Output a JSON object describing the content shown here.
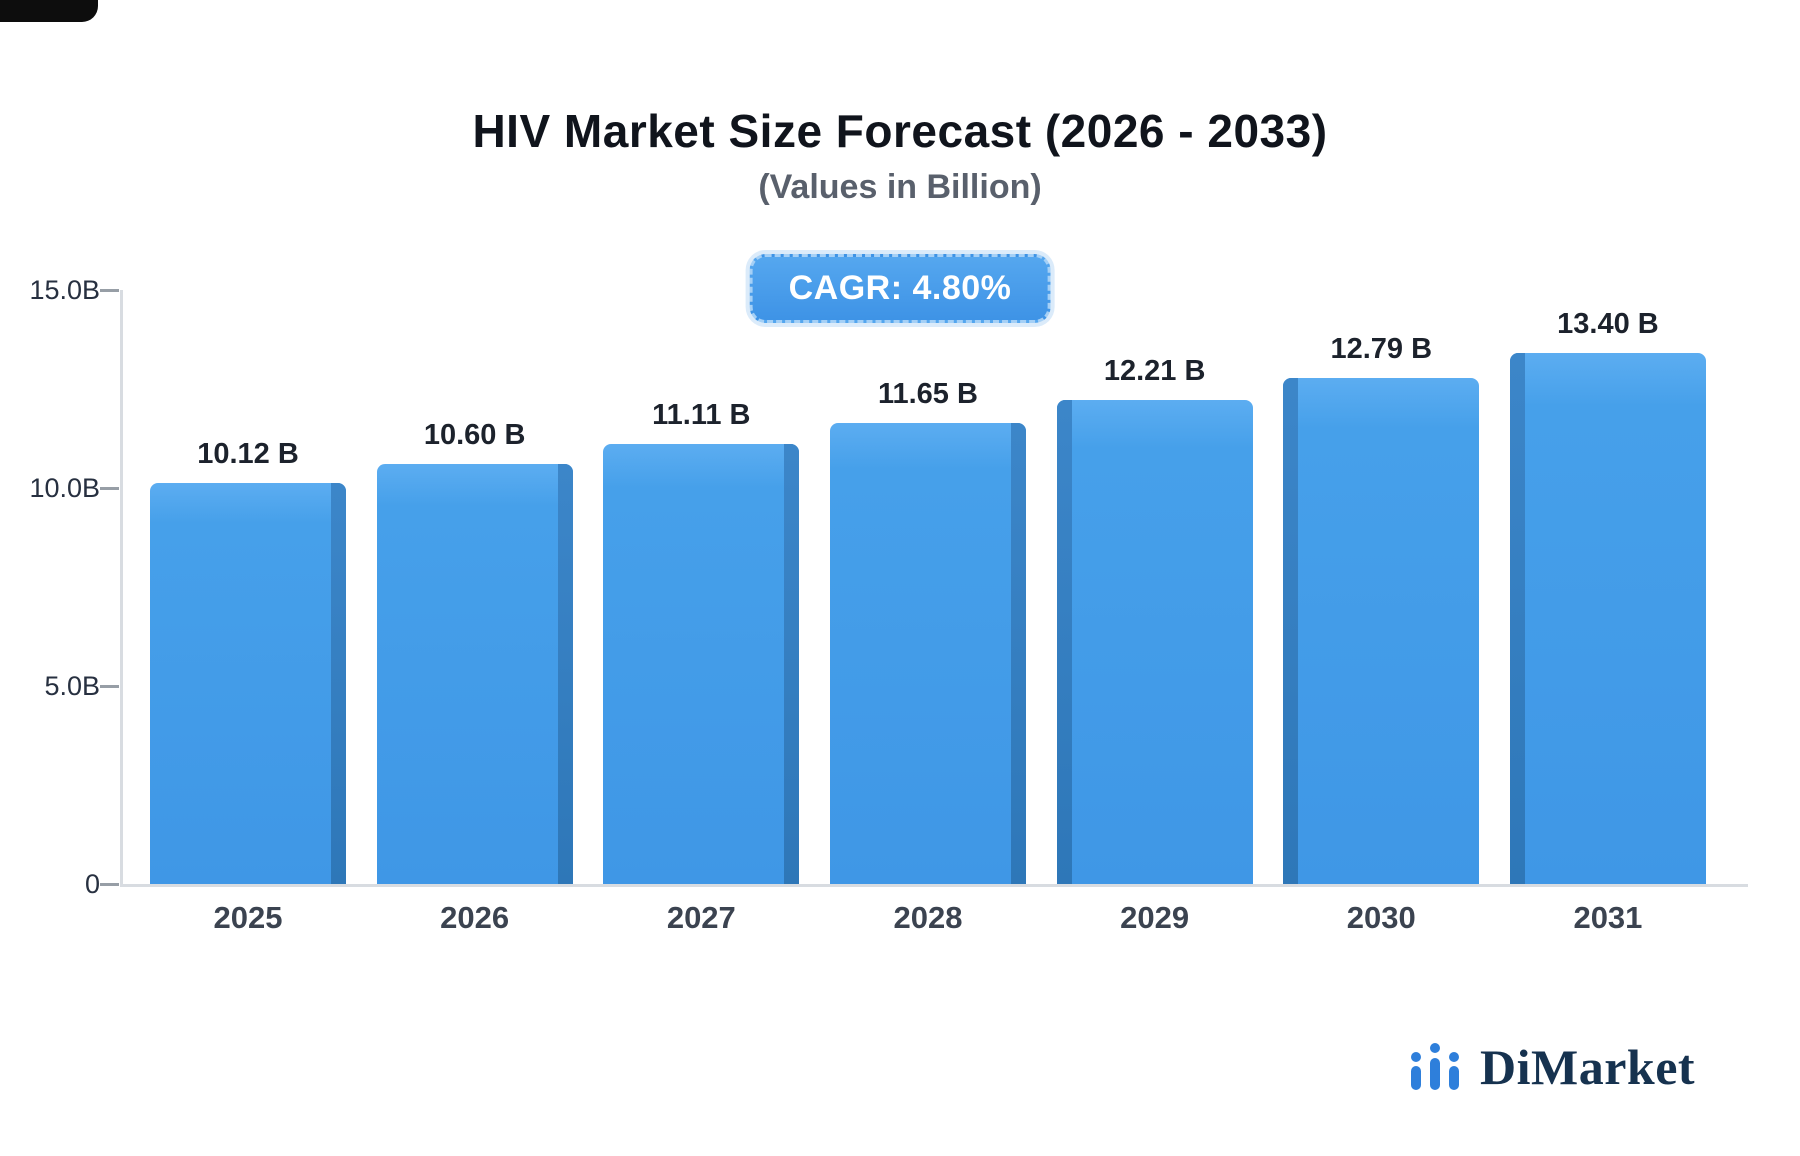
{
  "title": "HIV Market Size Forecast (2026 - 2033)",
  "subtitle": "(Values in Billion)",
  "badge": {
    "label": "CAGR: 4.80%"
  },
  "chart_data": {
    "type": "bar",
    "categories": [
      "2025",
      "2026",
      "2027",
      "2028",
      "2029",
      "2030",
      "2031"
    ],
    "values": [
      10.12,
      10.6,
      11.11,
      11.65,
      12.21,
      12.79,
      13.4
    ],
    "value_labels": [
      "10.12 B",
      "10.60 B",
      "11.11 B",
      "11.65 B",
      "12.21 B",
      "12.79 B",
      "13.40 B"
    ],
    "title": "HIV Market Size Forecast (2026 - 2033)",
    "xlabel": "",
    "ylabel": "",
    "ylim": [
      0,
      15
    ],
    "yticks": [
      {
        "value": 15,
        "label": "15.0B"
      },
      {
        "value": 10,
        "label": "10.0B"
      },
      {
        "value": 5,
        "label": "5.0B"
      },
      {
        "value": 0,
        "label": "0"
      }
    ],
    "grid": false,
    "legend": false,
    "bar_color": "#3f97e6",
    "bar_edge_color": "#2e77b8"
  },
  "logo": {
    "text": "DiMarket",
    "icon": "bar-chart-icon",
    "color": "#16324f",
    "accent": "#2e7fdb"
  }
}
